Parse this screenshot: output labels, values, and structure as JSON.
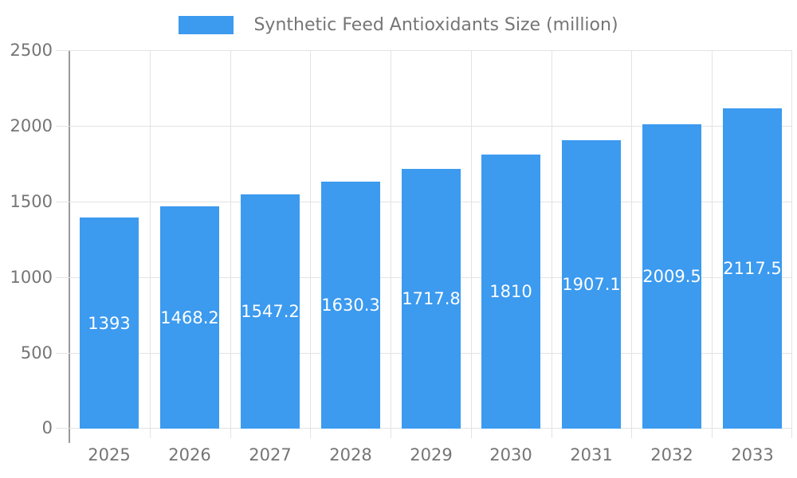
{
  "chart_data": {
    "type": "bar",
    "title": "Synthetic Feed Antioxidants Size (million)",
    "xlabel": "",
    "ylabel": "",
    "categories": [
      "2025",
      "2026",
      "2027",
      "2028",
      "2029",
      "2030",
      "2031",
      "2032",
      "2033"
    ],
    "values": [
      1393,
      1468.2,
      1547.2,
      1630.3,
      1717.8,
      1810,
      1907.1,
      2009.5,
      2117.5
    ],
    "value_labels": [
      "1393",
      "1468.2",
      "1547.2",
      "1630.3",
      "1717.8",
      "1810",
      "1907.1",
      "2009.5",
      "2117.5"
    ],
    "ylim": [
      0,
      2500
    ],
    "ytick_step": 500,
    "yticks": [
      "0",
      "500",
      "1000",
      "1500",
      "2000",
      "2500"
    ],
    "grid": true,
    "legend_position": "top",
    "colors": {
      "bar": "#3C9AEF",
      "bar_label": "#ffffff",
      "axis_text": "#757575",
      "grid": "#e3e3e3",
      "axis_line": "#999999",
      "background": "#ffffff"
    }
  }
}
